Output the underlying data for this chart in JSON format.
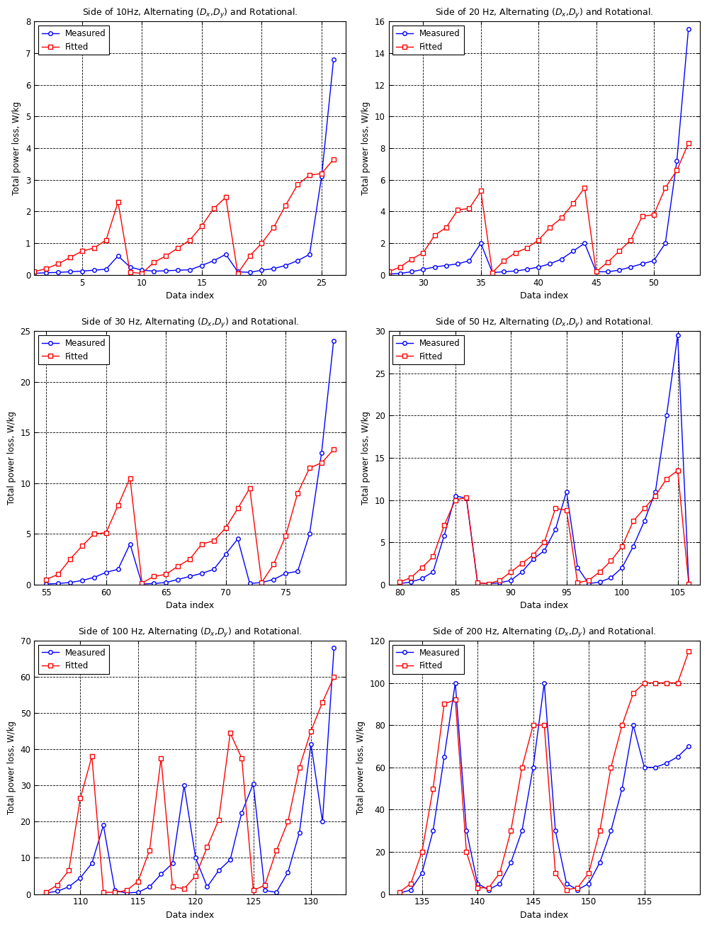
{
  "subplots": [
    {
      "title_raw": "Side of 10Hz, Alternating (D_x,D_y) and Rotational.",
      "xlim": [
        1,
        27
      ],
      "ylim": [
        0,
        8
      ],
      "yticks": [
        0,
        1,
        2,
        3,
        4,
        5,
        6,
        7,
        8
      ],
      "xticks": [
        5,
        10,
        15,
        20,
        25
      ],
      "measured_x": [
        1,
        2,
        3,
        4,
        5,
        6,
        7,
        8,
        9,
        10,
        11,
        12,
        13,
        14,
        15,
        16,
        17,
        18,
        19,
        20,
        21,
        22,
        23,
        24,
        25,
        26
      ],
      "measured_y": [
        0.05,
        0.07,
        0.08,
        0.1,
        0.12,
        0.15,
        0.18,
        0.6,
        0.25,
        0.15,
        0.12,
        0.13,
        0.15,
        0.16,
        0.3,
        0.45,
        0.65,
        0.1,
        0.08,
        0.15,
        0.2,
        0.3,
        0.45,
        0.65,
        3.1,
        6.8
      ],
      "fitted_x": [
        1,
        2,
        3,
        4,
        5,
        6,
        7,
        8,
        9,
        10,
        11,
        12,
        13,
        14,
        15,
        16,
        17,
        18,
        19,
        20,
        21,
        22,
        23,
        24,
        25,
        26
      ],
      "fitted_y": [
        0.1,
        0.2,
        0.35,
        0.55,
        0.75,
        0.85,
        1.1,
        2.3,
        0.08,
        0.05,
        0.4,
        0.6,
        0.85,
        1.1,
        1.55,
        2.1,
        2.45,
        0.05,
        0.6,
        1.0,
        1.5,
        2.2,
        2.85,
        3.15,
        3.2,
        3.65
      ]
    },
    {
      "title_raw": "Side of 20 Hz, Alternating (D_x,D_y) and Rotational.",
      "xlim": [
        27,
        54
      ],
      "ylim": [
        0,
        16
      ],
      "yticks": [
        0,
        2,
        4,
        6,
        8,
        10,
        12,
        14,
        16
      ],
      "xticks": [
        30,
        35,
        40,
        45,
        50
      ],
      "measured_x": [
        27,
        28,
        29,
        30,
        31,
        32,
        33,
        34,
        35,
        36,
        37,
        38,
        39,
        40,
        41,
        42,
        43,
        44,
        45,
        46,
        47,
        48,
        49,
        50,
        51,
        52,
        53
      ],
      "measured_y": [
        0.05,
        0.1,
        0.2,
        0.35,
        0.5,
        0.6,
        0.7,
        0.9,
        2.0,
        0.15,
        0.2,
        0.25,
        0.35,
        0.5,
        0.7,
        1.0,
        1.5,
        2.0,
        0.2,
        0.2,
        0.3,
        0.5,
        0.7,
        0.9,
        2.0,
        7.2,
        15.5
      ],
      "fitted_x": [
        27,
        28,
        29,
        30,
        31,
        32,
        33,
        34,
        35,
        36,
        37,
        38,
        39,
        40,
        41,
        42,
        43,
        44,
        45,
        46,
        47,
        48,
        49,
        50,
        51,
        52,
        53
      ],
      "fitted_y": [
        0.2,
        0.5,
        1.0,
        1.4,
        2.5,
        3.0,
        4.1,
        4.2,
        5.3,
        0.15,
        0.9,
        1.4,
        1.7,
        2.2,
        3.0,
        3.6,
        4.5,
        5.5,
        0.2,
        0.8,
        1.5,
        2.2,
        3.7,
        3.8,
        5.5,
        6.6,
        8.3
      ]
    },
    {
      "title_raw": "Side of 30 Hz, Alternating (D_x,D_y) and Rotational.",
      "xlim": [
        54,
        80
      ],
      "ylim": [
        0,
        25
      ],
      "yticks": [
        0,
        5,
        10,
        15,
        20,
        25
      ],
      "xticks": [
        55,
        60,
        65,
        70,
        75
      ],
      "measured_x": [
        55,
        56,
        57,
        58,
        59,
        60,
        61,
        62,
        63,
        64,
        65,
        66,
        67,
        68,
        69,
        70,
        71,
        72,
        73,
        74,
        75,
        76,
        77,
        78,
        79
      ],
      "measured_y": [
        0.05,
        0.1,
        0.2,
        0.4,
        0.7,
        1.2,
        1.5,
        4.0,
        0.05,
        0.1,
        0.2,
        0.5,
        0.8,
        1.1,
        1.5,
        3.0,
        4.5,
        0.1,
        0.2,
        0.5,
        1.1,
        1.3,
        5.0,
        13.0,
        24.0
      ],
      "fitted_x": [
        55,
        56,
        57,
        58,
        59,
        60,
        61,
        62,
        63,
        64,
        65,
        66,
        67,
        68,
        69,
        70,
        71,
        72,
        73,
        74,
        75,
        76,
        77,
        78,
        79
      ],
      "fitted_y": [
        0.5,
        1.0,
        2.5,
        3.8,
        5.0,
        5.1,
        7.8,
        10.5,
        0.15,
        0.8,
        1.0,
        1.8,
        2.5,
        4.0,
        4.3,
        5.6,
        7.5,
        9.5,
        0.2,
        2.0,
        4.8,
        9.0,
        11.5,
        12.0,
        13.3
      ]
    },
    {
      "title_raw": "Side of 50 Hz, Alternating (D_x,D_y) and Rotational.",
      "xlim": [
        79,
        107
      ],
      "ylim": [
        0,
        30
      ],
      "yticks": [
        0,
        5,
        10,
        15,
        20,
        25,
        30
      ],
      "xticks": [
        80,
        85,
        90,
        95,
        100,
        105
      ],
      "measured_x": [
        80,
        81,
        82,
        83,
        84,
        85,
        86,
        87,
        88,
        89,
        90,
        91,
        92,
        93,
        94,
        95,
        96,
        97,
        98,
        99,
        100,
        101,
        102,
        103,
        104,
        105,
        106
      ],
      "measured_y": [
        0.1,
        0.3,
        0.7,
        1.5,
        5.8,
        10.5,
        10.2,
        0.2,
        0.1,
        0.2,
        0.5,
        1.5,
        3.0,
        4.0,
        6.5,
        11.0,
        2.0,
        0.1,
        0.3,
        0.8,
        2.0,
        4.5,
        7.5,
        11.0,
        20.0,
        29.5,
        0.05
      ],
      "fitted_x": [
        80,
        81,
        82,
        83,
        84,
        85,
        86,
        87,
        88,
        89,
        90,
        91,
        92,
        93,
        94,
        95,
        96,
        97,
        98,
        99,
        100,
        101,
        102,
        103,
        104,
        105,
        106
      ],
      "fitted_y": [
        0.3,
        0.8,
        2.0,
        3.3,
        7.0,
        10.0,
        10.3,
        0.2,
        0.1,
        0.5,
        1.5,
        2.5,
        3.5,
        5.0,
        9.0,
        8.8,
        0.2,
        0.5,
        1.5,
        2.8,
        4.5,
        7.5,
        9.0,
        10.5,
        12.5,
        13.5,
        0.05
      ]
    },
    {
      "title_raw": "Side of 100 Hz, Alternating (D_x,D_y) and Rotational.",
      "xlim": [
        106,
        133
      ],
      "ylim": [
        0,
        70
      ],
      "yticks": [
        0,
        10,
        20,
        30,
        40,
        50,
        60,
        70
      ],
      "xticks": [
        110,
        115,
        120,
        125,
        130
      ],
      "measured_x": [
        107,
        108,
        109,
        110,
        111,
        112,
        113,
        114,
        115,
        116,
        117,
        118,
        119,
        120,
        121,
        122,
        123,
        124,
        125,
        126,
        127,
        128,
        129,
        130,
        131,
        132
      ],
      "measured_y": [
        0.3,
        0.8,
        2.0,
        4.5,
        8.5,
        19.0,
        1.0,
        0.3,
        0.5,
        2.0,
        5.5,
        8.5,
        30.0,
        10.0,
        2.0,
        6.5,
        9.5,
        22.5,
        30.5,
        1.0,
        0.5,
        6.0,
        17.0,
        41.5,
        20.0,
        68.0
      ],
      "fitted_x": [
        107,
        108,
        109,
        110,
        111,
        112,
        113,
        114,
        115,
        116,
        117,
        118,
        119,
        120,
        121,
        122,
        123,
        124,
        125,
        126,
        127,
        128,
        129,
        130,
        131,
        132
      ],
      "fitted_y": [
        0.5,
        2.5,
        6.5,
        26.5,
        38.0,
        0.5,
        0.5,
        1.0,
        3.5,
        12.0,
        37.5,
        2.0,
        1.5,
        5.0,
        13.0,
        20.5,
        44.5,
        37.5,
        1.0,
        2.5,
        12.0,
        20.0,
        35.0,
        45.0,
        53.0,
        60.0
      ]
    },
    {
      "title_raw": "Side of 200 Hz, Alternating (D_x,D_y) and Rotational.",
      "xlim": [
        132,
        160
      ],
      "ylim": [
        0,
        120
      ],
      "yticks": [
        0,
        20,
        40,
        60,
        80,
        100,
        120
      ],
      "xticks": [
        135,
        140,
        145,
        150,
        155
      ],
      "measured_x": [
        133,
        134,
        135,
        136,
        137,
        138,
        139,
        140,
        141,
        142,
        143,
        144,
        145,
        146,
        147,
        148,
        149,
        150,
        151,
        152,
        153,
        154,
        155,
        156,
        157,
        158,
        159
      ],
      "measured_y": [
        0.5,
        2.0,
        10.0,
        30.0,
        65.0,
        100.0,
        30.0,
        5.0,
        2.0,
        5.0,
        15.0,
        30.0,
        60.0,
        100.0,
        30.0,
        5.0,
        2.0,
        5.0,
        15.0,
        30.0,
        50.0,
        80.0,
        60.0,
        60.0,
        62.0,
        65.0,
        70.0
      ],
      "fitted_x": [
        133,
        134,
        135,
        136,
        137,
        138,
        139,
        140,
        141,
        142,
        143,
        144,
        145,
        146,
        147,
        148,
        149,
        150,
        151,
        152,
        153,
        154,
        155,
        156,
        157,
        158,
        159
      ],
      "fitted_y": [
        1.0,
        5.0,
        20.0,
        50.0,
        90.0,
        92.0,
        20.0,
        3.0,
        3.0,
        10.0,
        30.0,
        60.0,
        80.0,
        80.0,
        10.0,
        2.0,
        3.0,
        10.0,
        30.0,
        60.0,
        80.0,
        95.0,
        100.0,
        100.0,
        100.0,
        100.0,
        115.0
      ]
    }
  ],
  "blue_color": "#0000FF",
  "red_color": "#FF0000",
  "measured_label": "Measured",
  "fitted_label": "Fitted",
  "ylabel": "Total power loss, W/kg",
  "xlabel": "Data index",
  "bg_color": "#FFFFFF"
}
